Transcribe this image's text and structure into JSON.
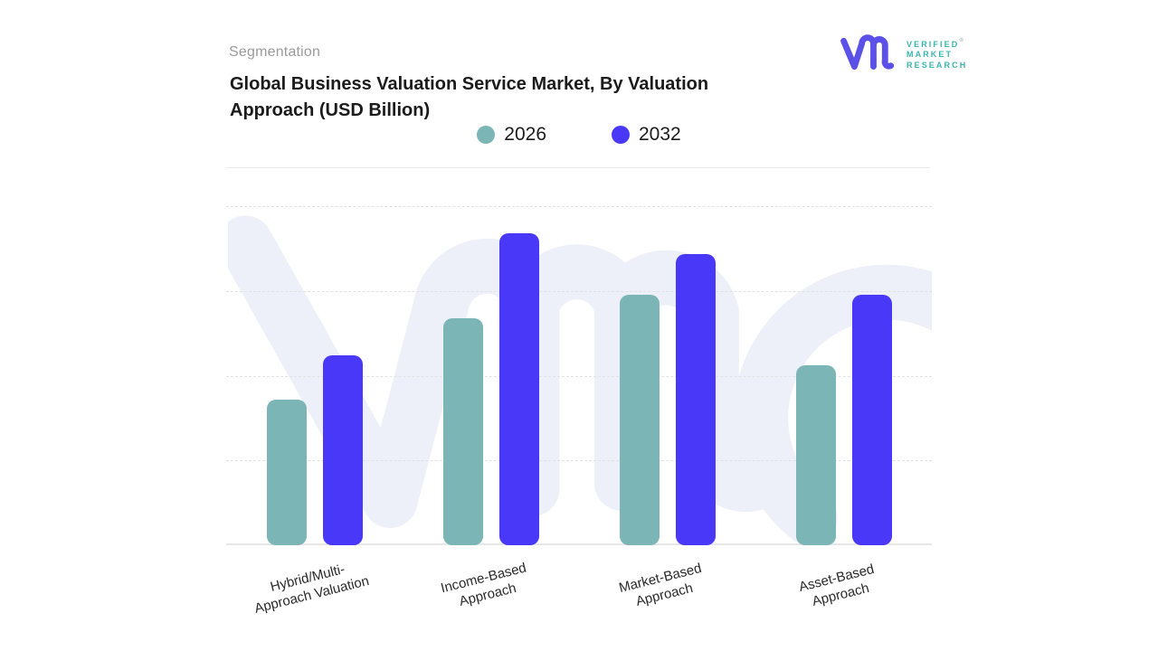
{
  "page": {
    "background": "#ffffff"
  },
  "header": {
    "eyebrow": "Segmentation",
    "title_line1": "Global Business Valuation Service Market, By Valuation",
    "title_line2": "Approach (USD Billion)"
  },
  "logo": {
    "name": "Verified Market Research",
    "line1": "VERIFIED",
    "line2": "MARKET",
    "line3": "RESEARCH",
    "registered_mark": "®",
    "glyph_color": "#5b51e8",
    "text_color": "#3ab5ad"
  },
  "legend": [
    {
      "label": "2026",
      "color": "#7cb5b6"
    },
    {
      "label": "2032",
      "color": "#4a38f8"
    }
  ],
  "chart_data": {
    "type": "bar",
    "title": "Global Business Valuation Service Market, By Valuation Approach (USD Billion)",
    "xlabel": "",
    "ylabel": "",
    "categories": [
      "Hybrid/Multi-Approach Valuation",
      "Income-Based Approach",
      "Market-Based Approach",
      "Asset-Based Approach"
    ],
    "categories_display": [
      [
        "Hybrid/Multi-",
        "Approach Valuation"
      ],
      [
        "Income-Based",
        "Approach"
      ],
      [
        "Market-Based",
        "Approach"
      ],
      [
        "Asset-Based",
        "Approach"
      ]
    ],
    "series": [
      {
        "name": "2026",
        "color": "#7cb5b6",
        "values": [
          43,
          67,
          74,
          53
        ]
      },
      {
        "name": "2032",
        "color": "#4a38f8",
        "values": [
          56,
          92,
          86,
          74
        ]
      }
    ],
    "ylim": [
      0,
      100
    ],
    "values_note": "y-axis has no visible tick labels; values estimated from dashed gridlines (one gridline interval = 25 units)",
    "grid": "horizontal dashed lines at 25-unit intervals",
    "legend_position": "top-center",
    "watermark_color": "#eef0f9"
  }
}
